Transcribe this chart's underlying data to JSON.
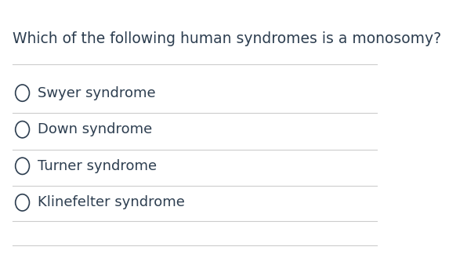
{
  "question": "Which of the following human syndromes is a monosomy?",
  "options": [
    "Swyer syndrome",
    "Down syndrome",
    "Turner syndrome",
    "Klinefelter syndrome"
  ],
  "bg_color": "#ffffff",
  "question_color": "#2d3e50",
  "option_color": "#2d3e50",
  "line_color": "#cccccc",
  "circle_color": "#2d3e50",
  "question_fontsize": 13.5,
  "option_fontsize": 13.0,
  "figwidth": 5.96,
  "figheight": 3.24,
  "dpi": 100
}
